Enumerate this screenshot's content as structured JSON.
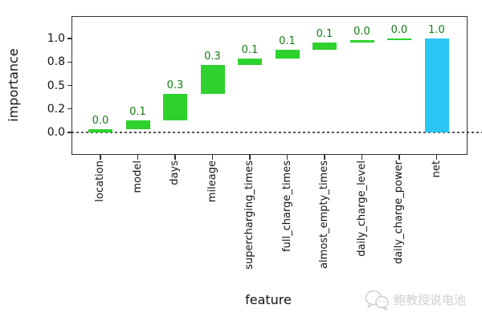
{
  "chart_data": {
    "type": "bar",
    "subtype": "waterfall",
    "title": "",
    "xlabel": "feature",
    "ylabel": "importance",
    "categories": [
      "location",
      "model",
      "days",
      "mileage",
      "supercharging_times",
      "full_charge_times",
      "almost_empty_times",
      "daily_charge_level",
      "daily_charge_power",
      "net"
    ],
    "values": [
      0.0,
      0.1,
      0.3,
      0.3,
      0.1,
      0.1,
      0.1,
      0.0,
      0.0,
      1.0
    ],
    "value_labels": [
      "0.0",
      "0.1",
      "0.3",
      "0.3",
      "0.1",
      "0.1",
      "0.1",
      "0.0",
      "0.0",
      "1.0"
    ],
    "bar_segments": [
      [
        0,
        0.03
      ],
      [
        0.03,
        0.13
      ],
      [
        0.13,
        0.41
      ],
      [
        0.41,
        0.72
      ],
      [
        0.72,
        0.79
      ],
      [
        0.79,
        0.88
      ],
      [
        0.88,
        0.96
      ],
      [
        0.96,
        0.98
      ],
      [
        0.98,
        1.0
      ],
      [
        0,
        1.0
      ]
    ],
    "bar_colors": [
      "green",
      "green",
      "green",
      "green",
      "green",
      "green",
      "green",
      "green",
      "green",
      "blue"
    ],
    "palette": {
      "green": "#2dd22d",
      "blue": "#29c5f4",
      "value_label_green": "#127d12"
    },
    "yticks": [
      {
        "value": 0.0,
        "label": "0.0"
      },
      {
        "value": 0.25,
        "label": "0.2"
      },
      {
        "value": 0.5,
        "label": "0.5"
      },
      {
        "value": 0.75,
        "label": "0.8"
      },
      {
        "value": 1.0,
        "label": "1.0"
      }
    ],
    "ylim": [
      -0.24,
      1.24
    ],
    "grid": false,
    "legend": false,
    "zero_line_dashed": true
  },
  "watermark": {
    "icon": "wechat-logo-icon",
    "text": "鲍教授说电池"
  }
}
